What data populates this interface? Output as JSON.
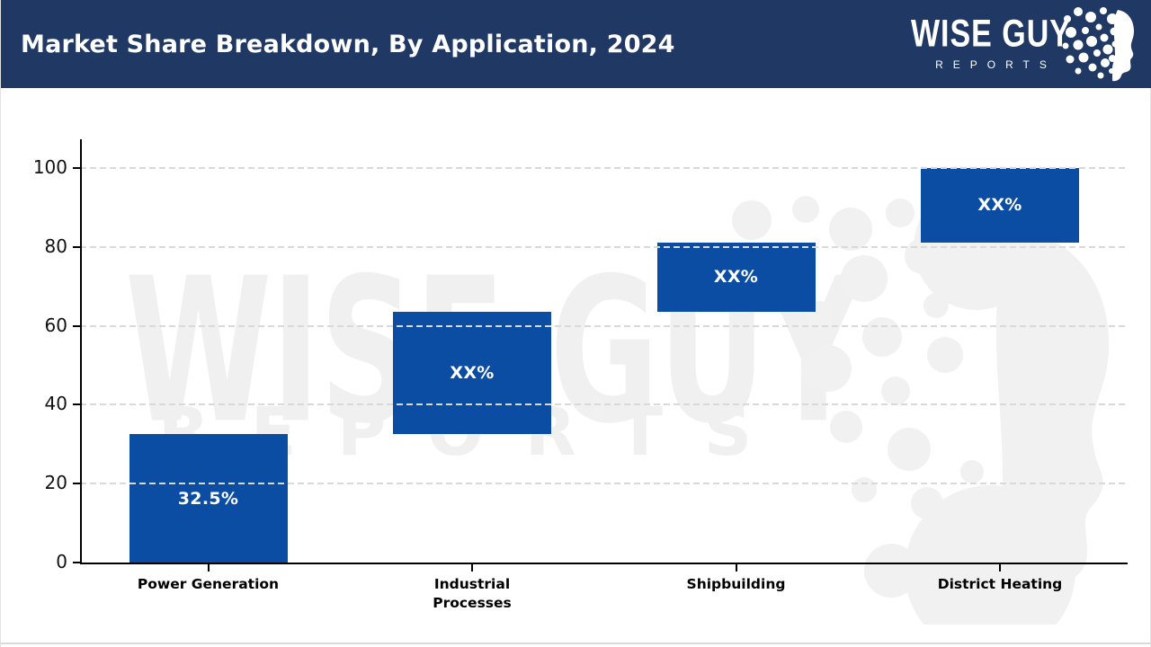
{
  "header": {
    "title": "Market Share Breakdown, By Application, 2024",
    "logo": {
      "name": "WISE GUY",
      "sub": "REPORTS"
    }
  },
  "watermark": {
    "line1": "WISE GUY",
    "line2": "R E P O R T S"
  },
  "colors": {
    "header_bg": "#203864",
    "bar": "#0b4da2",
    "gridline": "#d9d9d9",
    "axis": "#000000",
    "bar_label": "#ffffff",
    "watermark": "#f0f0f1"
  },
  "chart_data": {
    "type": "bar",
    "subtype": "waterfall",
    "title": "Market Share Breakdown, By Application, 2024",
    "categories": [
      "Power Generation",
      "Industrial\nProcesses",
      "Shipbuilding",
      "District Heating"
    ],
    "segments": [
      {
        "category": "Power Generation",
        "start": 0,
        "end": 32.5,
        "value": 32.5,
        "label": "32.5%"
      },
      {
        "category": "Industrial Processes",
        "start": 32.5,
        "end": 63.5,
        "value": 31.0,
        "label": "XX%"
      },
      {
        "category": "Shipbuilding",
        "start": 63.5,
        "end": 81.2,
        "value": 17.7,
        "label": "XX%"
      },
      {
        "category": "District Heating",
        "start": 81.2,
        "end": 100,
        "value": 18.8,
        "label": "XX%"
      }
    ],
    "xlabel": "",
    "ylabel": "",
    "yticks": [
      0,
      20,
      40,
      60,
      80,
      100
    ],
    "ylim": [
      0,
      107
    ],
    "grid": "horizontal-dashed",
    "gridline_above_bars": true,
    "legend": "none"
  }
}
